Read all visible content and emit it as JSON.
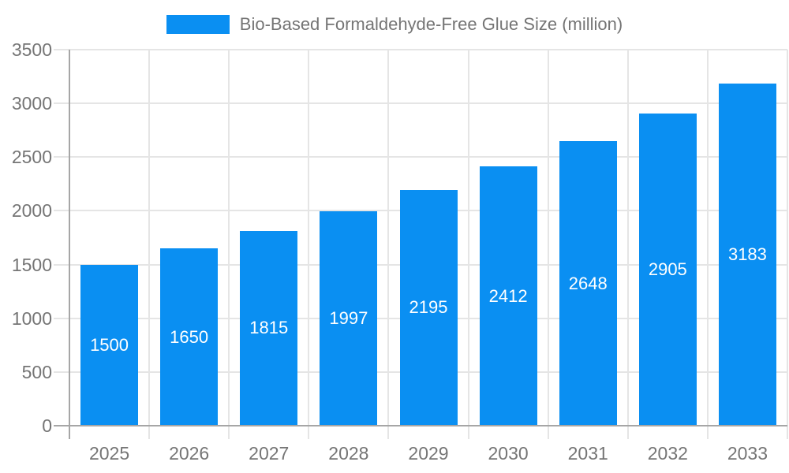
{
  "legend": {
    "swatch_color": "#0a8ff2"
  },
  "chart_data": {
    "type": "bar",
    "title": "Bio-Based Formaldehyde-Free Glue Size (million)",
    "categories": [
      "2025",
      "2026",
      "2027",
      "2028",
      "2029",
      "2030",
      "2031",
      "2032",
      "2033"
    ],
    "values": [
      1500,
      1650,
      1815,
      1997,
      2195,
      2412,
      2648,
      2905,
      3183
    ],
    "xlabel": "",
    "ylabel": "",
    "ylim": [
      0,
      3500
    ],
    "ytick_step": 500,
    "yticks": [
      0,
      500,
      1000,
      1500,
      2000,
      2500,
      3000,
      3500
    ],
    "grid": true,
    "legend_position": "top-center",
    "bar_color": "#0a8ff2",
    "bar_label_color": "#ffffff",
    "axis_text_color": "#757575",
    "grid_color": "#e5e5e5",
    "axis_line_color": "#a6a6a6"
  }
}
